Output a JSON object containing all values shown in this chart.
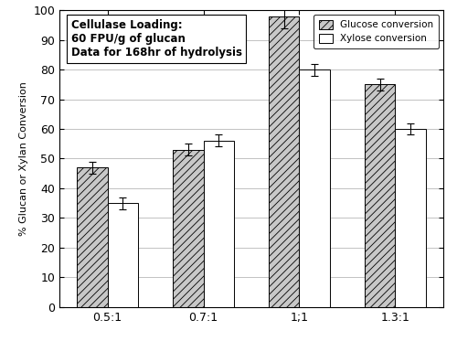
{
  "categories": [
    "0.5:1",
    "0.7:1",
    "1;1",
    "1.3:1"
  ],
  "glucose_values": [
    47,
    53,
    98,
    75
  ],
  "xylose_values": [
    35,
    56,
    80,
    60
  ],
  "glucose_errors": [
    2,
    2,
    4,
    2
  ],
  "xylose_errors": [
    2,
    2,
    2,
    2
  ],
  "ylabel": "% Glucan or Xylan Conversion",
  "ylim": [
    0,
    100
  ],
  "yticks": [
    0,
    10,
    20,
    30,
    40,
    50,
    60,
    70,
    80,
    90,
    100
  ],
  "glucose_label": "Glucose conversion",
  "xylose_label": "Xylose conversion",
  "annotation_lines": [
    "Cellulase Loading:",
    "60 FPU/g of glucan",
    "Data for 168hr of hydrolysis"
  ],
  "glucose_color": "#c8c8c8",
  "xylose_color": "#ffffff",
  "bar_edge_color": "#000000",
  "bar_width": 0.32,
  "hatch_glucose": "////",
  "hatch_xylose": ""
}
